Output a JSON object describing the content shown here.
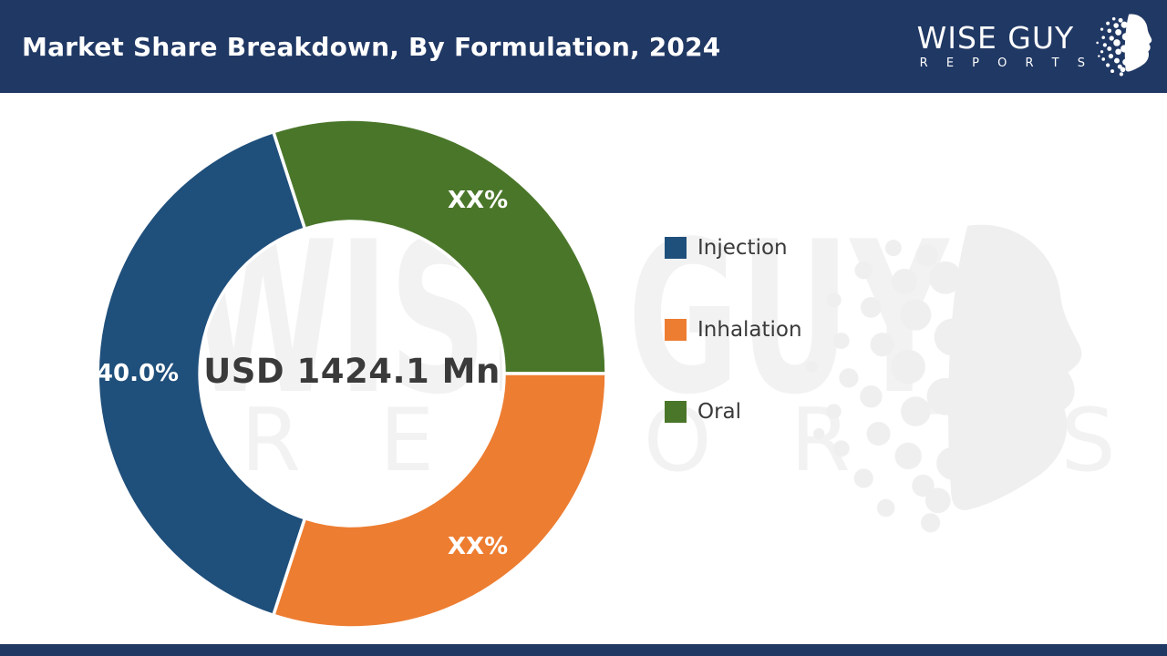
{
  "page": {
    "background": "#ffffff",
    "accent_navy": "#203864"
  },
  "header": {
    "title": "Market Share Breakdown, By Formulation, 2024",
    "logo": {
      "line1": "WISE GUY",
      "line2": "R E P O R T S"
    }
  },
  "watermark": {
    "line1": "WISE GUY",
    "line2": "R E P O R T S"
  },
  "chart_data": {
    "type": "pie",
    "subtype": "donut",
    "title": "Market Share Breakdown, By Formulation, 2024",
    "center_label": "USD 1424.1 Mn",
    "hole_ratio": 0.6,
    "start_angle_deg": -18,
    "direction": "clockwise",
    "series": [
      {
        "name": "Oral",
        "label": "XX%",
        "value_pct": 30,
        "color": "#4a7629"
      },
      {
        "name": "Inhalation",
        "label": "XX%",
        "value_pct": 30,
        "color": "#ed7d31"
      },
      {
        "name": "Injection",
        "label": "40.0%",
        "value_pct": 40,
        "color": "#1f4f7b"
      }
    ],
    "legend": {
      "position": "right",
      "items": [
        {
          "label": "Injection"
        },
        {
          "label": "Inhalation"
        },
        {
          "label": "Oral"
        }
      ]
    }
  }
}
